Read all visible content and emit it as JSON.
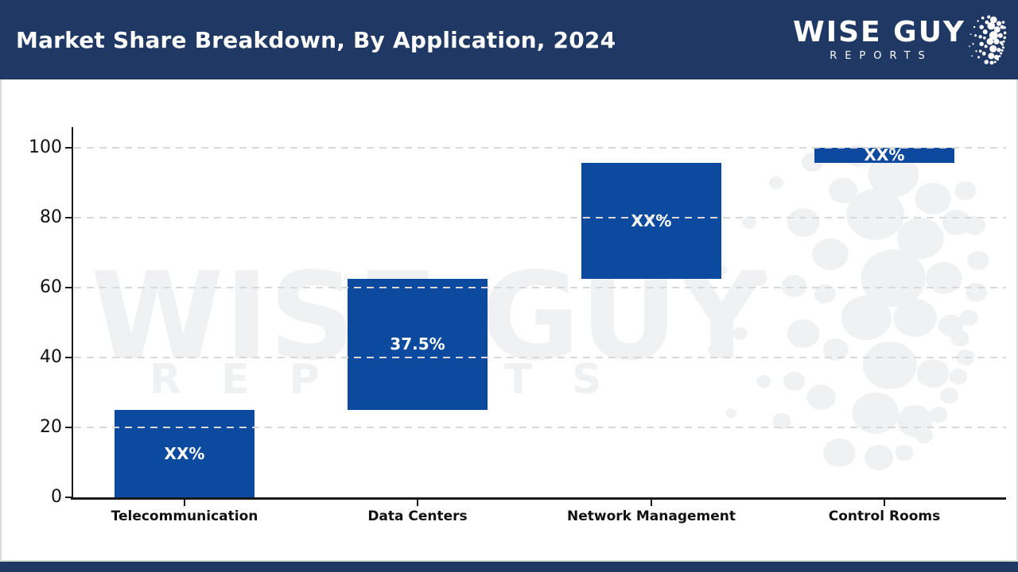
{
  "header": {
    "title": "Market Share Breakdown, By Application, 2024",
    "logo": {
      "brand_line1": "WISE GUY",
      "brand_line2": "REPORTS"
    }
  },
  "watermark": {
    "line1": "WISE GUY",
    "line2": "REPORTS"
  },
  "colors": {
    "header_bg": "#1f3864",
    "footer_bg": "#1f3864",
    "bar": "#0b4a9f",
    "bar_label": "#ffffff",
    "grid": "#d9d9d9",
    "axis": "#1a1a1a",
    "watermark": "#f0f1f3"
  },
  "chart_data": {
    "type": "bar",
    "subtype": "waterfall",
    "title": "Market Share Breakdown, By Application, 2024",
    "categories": [
      "Telecommunication",
      "Data Centers",
      "Network Management",
      "Control Rooms"
    ],
    "segments": [
      {
        "category": "Telecommunication",
        "start": 0,
        "end": 25,
        "label": "XX%"
      },
      {
        "category": "Data Centers",
        "start": 25,
        "end": 62.5,
        "label": "37.5%"
      },
      {
        "category": "Network Management",
        "start": 62.5,
        "end": 95.5,
        "label": "XX%"
      },
      {
        "category": "Control Rooms",
        "start": 95.5,
        "end": 100,
        "label": "XX%"
      }
    ],
    "yticks": [
      0,
      20,
      40,
      60,
      80,
      100
    ],
    "ylim": [
      0,
      106
    ],
    "grid": "dashed-horizontal",
    "legend": "none",
    "xlabel": "",
    "ylabel": ""
  }
}
